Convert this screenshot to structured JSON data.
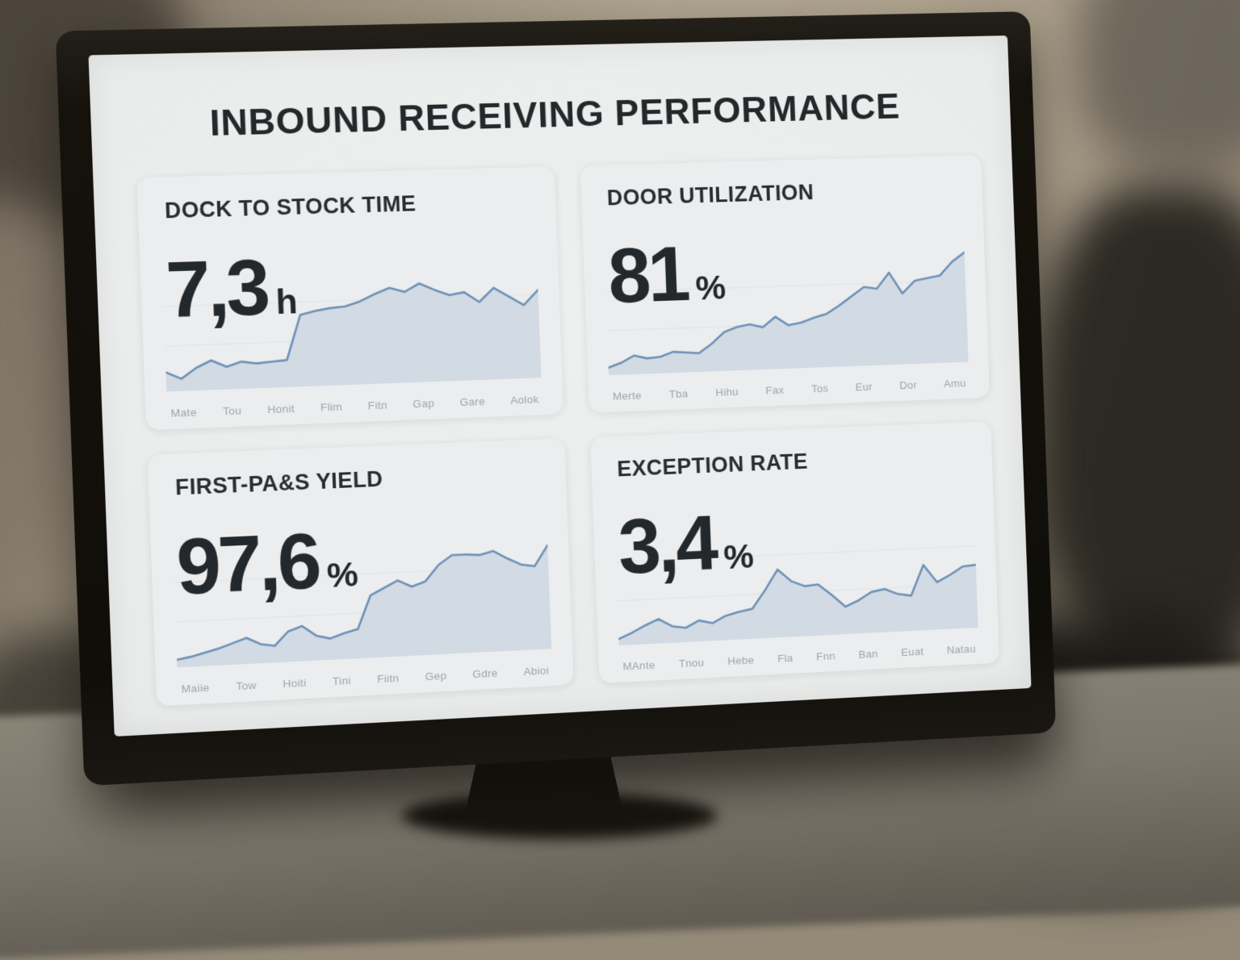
{
  "page": {
    "title": "INBOUND RECEIVING PERFORMANCE"
  },
  "colors": {
    "line": "#6d91b6",
    "fill": "#cfd8e3",
    "card-bg": "#ecedee",
    "screen-bg": "#e9ebea",
    "heading": "#23282b",
    "tick": "#8f979e"
  },
  "chart_data": [
    {
      "type": "area",
      "title": "DOCK TO STOCK TIME",
      "kpi_value": "7,3",
      "kpi_unit": "h",
      "x_labels": [
        "Mate",
        "Tou",
        "Honit",
        "Flim",
        "Fitn",
        "Gap",
        "Gare",
        "Aolok"
      ],
      "values": [
        14,
        8,
        17,
        23,
        17,
        21,
        19,
        20,
        21,
        60,
        63,
        65,
        66,
        70,
        76,
        81,
        77,
        84,
        78,
        73,
        75,
        66,
        78,
        70,
        62,
        75
      ],
      "ylim": [
        0,
        100
      ],
      "y_scale": "relative chart height (y axis unlabeled)",
      "grid": "two faint horizontal gridlines",
      "legend": "none"
    },
    {
      "type": "area",
      "title": "DOOR UTILIZATION",
      "kpi_value": "81",
      "kpi_unit": "%",
      "x_labels": [
        "Merte",
        "Tba",
        "Hihu",
        "Fax",
        "Tos",
        "Eur",
        "Dor",
        "Amu"
      ],
      "values": [
        4,
        8,
        14,
        11,
        12,
        16,
        15,
        14,
        22,
        32,
        36,
        38,
        35,
        44,
        36,
        38,
        42,
        45,
        52,
        60,
        68,
        66,
        80,
        61,
        72,
        74,
        76,
        88,
        96
      ],
      "ylim": [
        0,
        100
      ],
      "y_scale": "relative chart height (y axis unlabeled)",
      "grid": "two faint horizontal gridlines",
      "legend": "none"
    },
    {
      "type": "area",
      "title": "FIRST-PA&S YIELD",
      "kpi_value": "97,6",
      "kpi_unit": "%",
      "x_labels": [
        "Maiie",
        "Tow",
        "Hoiti",
        "Tini",
        "Fiitn",
        "Gep",
        "Gdre",
        "Abioi"
      ],
      "values": [
        4,
        6,
        9,
        12,
        16,
        20,
        14,
        12,
        24,
        28,
        19,
        16,
        20,
        23,
        52,
        58,
        64,
        58,
        62,
        76,
        84,
        84,
        83,
        86,
        79,
        73,
        71,
        89
      ],
      "ylim": [
        0,
        100
      ],
      "y_scale": "relative chart height (y axis unlabeled)",
      "grid": "two faint horizontal gridlines",
      "legend": "none"
    },
    {
      "type": "area",
      "title": "EXCEPTION RATE",
      "kpi_value": "3,4",
      "kpi_unit": "%",
      "x_labels": [
        "MAnte",
        "Tnou",
        "Hebe",
        "Fla",
        "Fnn",
        "Ban",
        "Euat",
        "Natau"
      ],
      "values": [
        3,
        8,
        14,
        19,
        12,
        10,
        16,
        13,
        19,
        22,
        24,
        40,
        58,
        47,
        42,
        43,
        33,
        22,
        27,
        34,
        36,
        31,
        29,
        56,
        40,
        46,
        53,
        54
      ],
      "ylim": [
        0,
        100
      ],
      "y_scale": "relative chart height (y axis unlabeled)",
      "grid": "two faint horizontal gridlines",
      "legend": "none"
    }
  ]
}
